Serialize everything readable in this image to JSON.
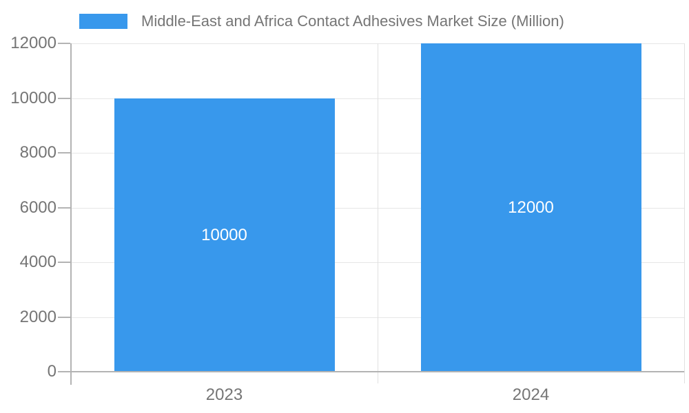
{
  "legend": {
    "label": "Middle-East and Africa Contact Adhesives Market Size (Million)",
    "swatch_color": "#3898ec"
  },
  "chart_data": {
    "type": "bar",
    "title": "Middle-East and Africa Contact Adhesives Market Size (Million)",
    "categories": [
      "2023",
      "2024"
    ],
    "series": [
      {
        "name": "Middle-East and Africa Contact Adhesives Market Size (Million)",
        "values": [
          10000,
          12000
        ],
        "color": "#3898ec"
      }
    ],
    "bar_value_labels": [
      "10000",
      "12000"
    ],
    "xlabel": "",
    "ylabel": "",
    "ylim": [
      0,
      12000
    ],
    "yticks": [
      0,
      2000,
      4000,
      6000,
      8000,
      10000,
      12000
    ],
    "grid": true,
    "legend_position": "top"
  },
  "colors": {
    "bar": "#3898ec",
    "axis_line": "#b3b3b3",
    "gridline": "#e6e6e6",
    "tick_label": "#757575",
    "bar_label": "#ffffff",
    "background": "#ffffff"
  }
}
